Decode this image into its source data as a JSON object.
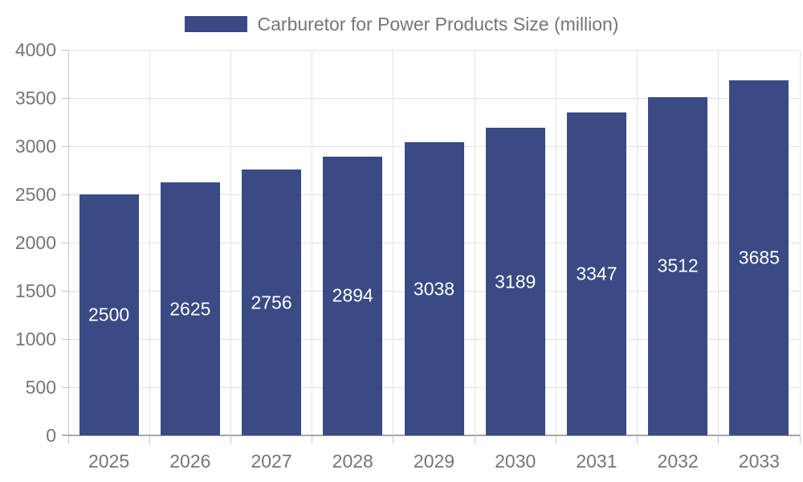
{
  "legend": {
    "label": "Carburetor for Power Products Size (million)",
    "swatch_color": "#394a85"
  },
  "chart_data": {
    "type": "bar",
    "title": "Carburetor for Power Products Size (million)",
    "series_name": "Carburetor for Power Products Size (million)",
    "categories": [
      "2025",
      "2026",
      "2027",
      "2028",
      "2029",
      "2030",
      "2031",
      "2032",
      "2033"
    ],
    "values": [
      2500,
      2625,
      2756,
      2894,
      3038,
      3189,
      3347,
      3512,
      3685
    ],
    "xlabel": "",
    "ylabel": "",
    "ylim": [
      0,
      4000
    ],
    "yticks": [
      0,
      500,
      1000,
      1500,
      2000,
      2500,
      3000,
      3500,
      4000
    ],
    "grid": true,
    "legend_position": "top-center",
    "bar_color": "#394a85",
    "value_label_color": "#ffffff",
    "axis_label_color": "#757575",
    "gridline_color": "#e2e2e2",
    "axis_line_color": "#a6a6a6"
  }
}
